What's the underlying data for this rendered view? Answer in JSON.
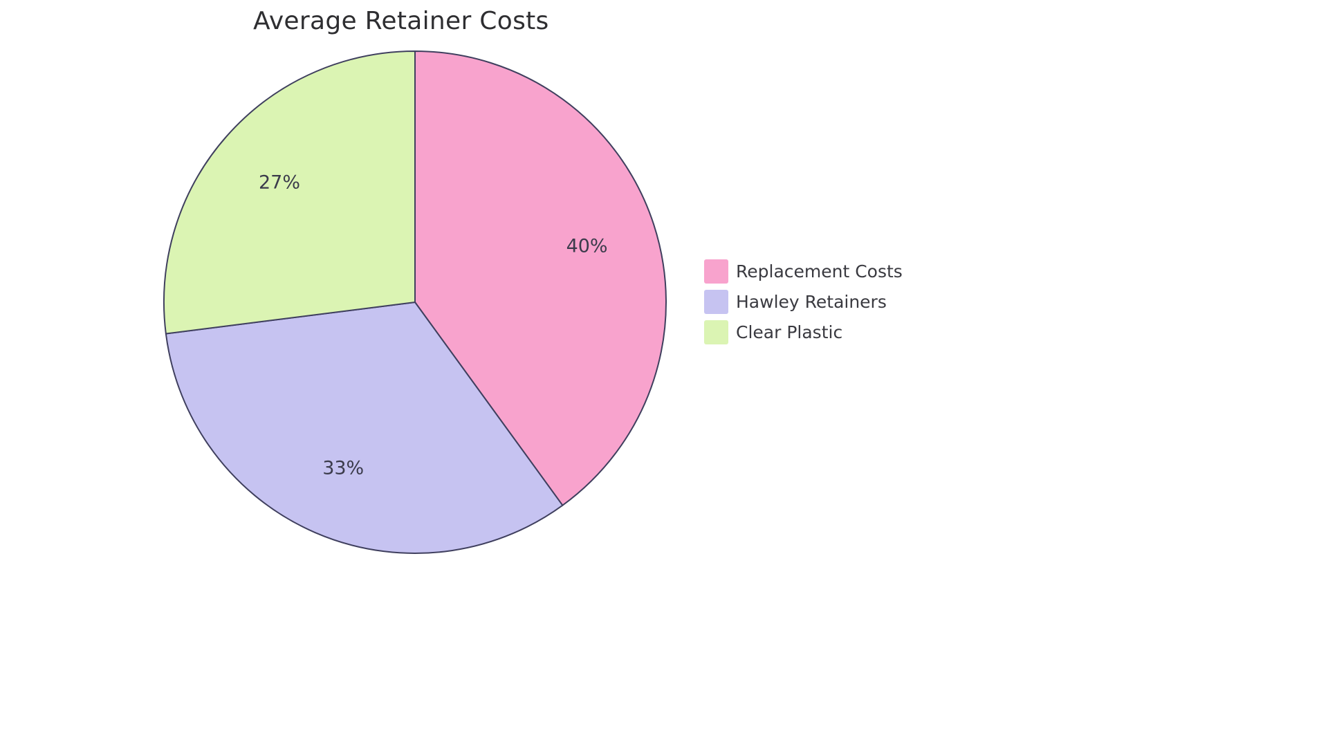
{
  "chart_data": {
    "type": "pie",
    "title": "Average Retainer Costs",
    "series": [
      {
        "name": "Replacement Costs",
        "value": 40,
        "label": "40%",
        "color": "#F8A3CD"
      },
      {
        "name": "Hawley Retainers",
        "value": 33,
        "label": "33%",
        "color": "#C6C3F1"
      },
      {
        "name": "Clear Plastic",
        "value": 27,
        "label": "27%",
        "color": "#DBF4B3"
      }
    ],
    "start_angle_deg": -90,
    "direction": "clockwise",
    "stroke_color": "#3F3F5E",
    "label_color": "#3B3B4B",
    "label_font_size": 27,
    "legend_position": "right",
    "grid": false
  }
}
